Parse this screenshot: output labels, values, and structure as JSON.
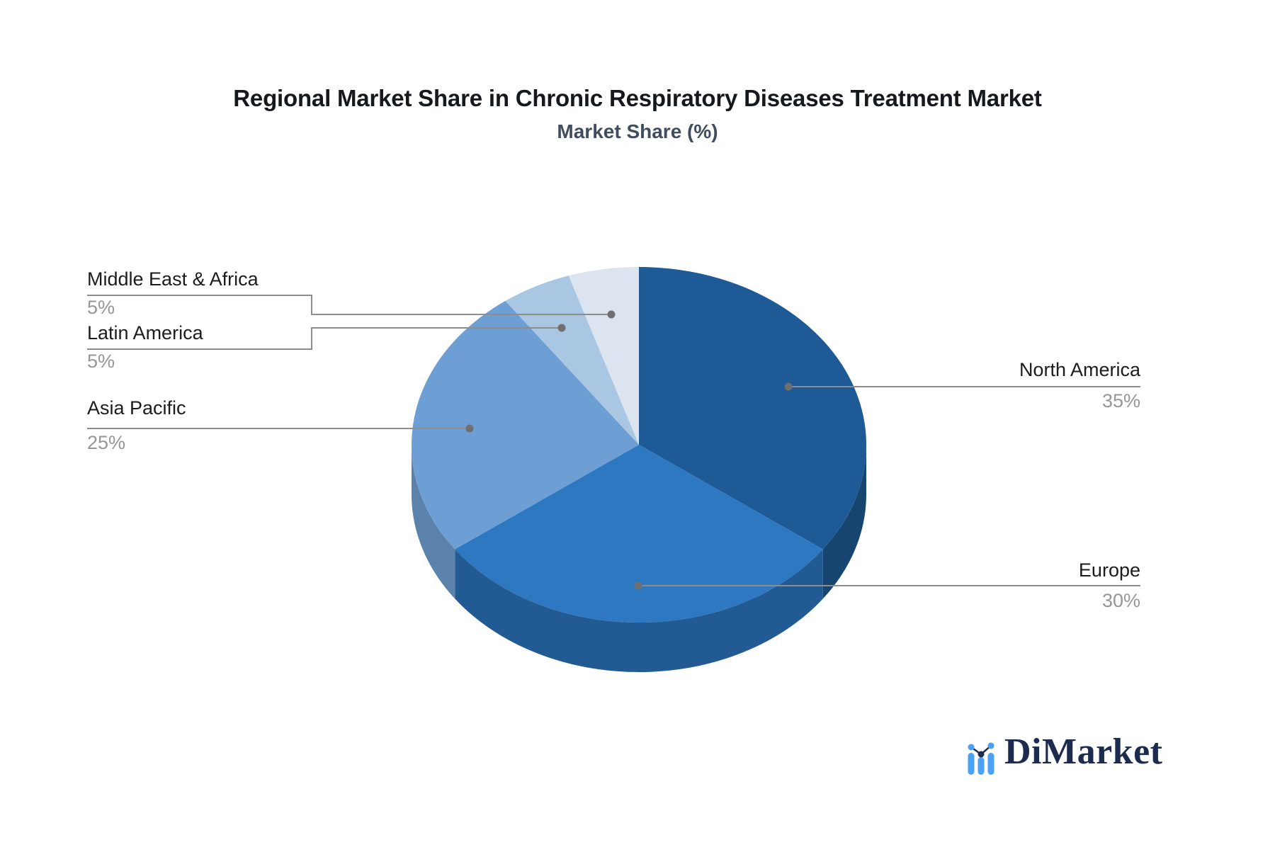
{
  "chart_data": {
    "type": "pie",
    "style": "3d",
    "title": "Regional Market Share in Chronic Respiratory Diseases Treatment Market",
    "subtitle": "Market Share (%)",
    "unit": "percent",
    "start_angle_deg": 0,
    "direction": "clockwise",
    "slices": [
      {
        "label": "North America",
        "value": 35,
        "display_value": "35%",
        "color": "#1d5a96",
        "side_color": "#164570"
      },
      {
        "label": "Europe",
        "value": 30,
        "display_value": "30%",
        "color": "#2e78c2",
        "side_color": "#225b93"
      },
      {
        "label": "Asia Pacific",
        "value": 25,
        "display_value": "25%",
        "color": "#6d9fd4",
        "side_color": "#5b82ab"
      },
      {
        "label": "Latin America",
        "value": 5,
        "display_value": "5%",
        "color": "#a9c6e3",
        "side_color": "#8aa5c2"
      },
      {
        "label": "Middle East & Africa",
        "value": 5,
        "display_value": "5%",
        "color": "#dce4ef",
        "side_color": "#b4bfd0"
      }
    ],
    "legend_position": "callout-labels",
    "leader_line_color": "#8d8d8d",
    "leader_dot_color": "#707070",
    "label_color": "#1c1c1c",
    "value_color": "#969696"
  },
  "branding": {
    "logo_text": "DiMarket",
    "logo_icon": "bar-chart-trend-icon",
    "logo_text_color": "#1d2c4e",
    "logo_bar_color": "#4aa1f5"
  }
}
